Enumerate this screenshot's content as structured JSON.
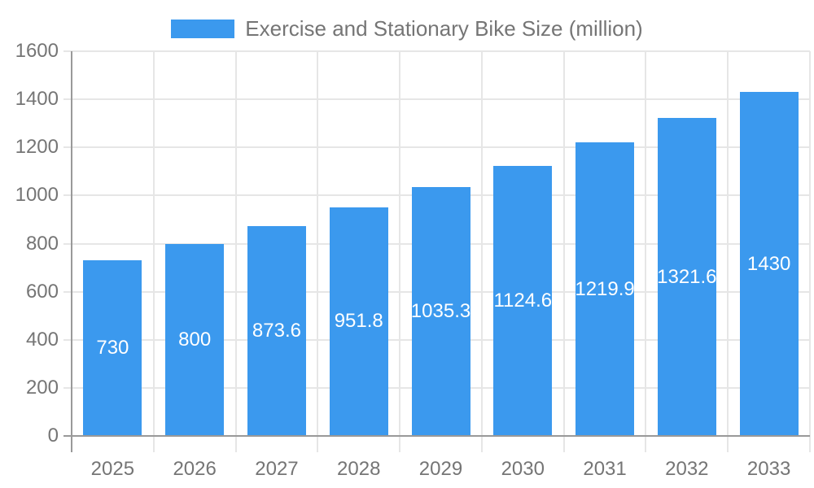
{
  "colors": {
    "bar": "#3B99EE",
    "bar_label": "#ffffff",
    "axis": "#999999",
    "grid": "#e6e6e6",
    "text": "#757575",
    "background": "#ffffff"
  },
  "legend": {
    "label": "Exercise and Stationary Bike Size (million)"
  },
  "chart_data": {
    "type": "bar",
    "title": "Exercise and Stationary Bike Size (million)",
    "series_name": "Exercise and Stationary Bike Size (million)",
    "categories": [
      "2025",
      "2026",
      "2027",
      "2028",
      "2029",
      "2030",
      "2031",
      "2032",
      "2033"
    ],
    "values": [
      730,
      800,
      873.6,
      951.8,
      1035.3,
      1124.6,
      1219.9,
      1321.6,
      1430
    ],
    "value_labels": [
      "730",
      "800",
      "873.6",
      "951.8",
      "1035.3",
      "1124.6",
      "1219.9",
      "1321.6",
      "1430"
    ],
    "xlabel": "",
    "ylabel": "",
    "ylim": [
      0,
      1600
    ],
    "yticks": [
      0,
      200,
      400,
      600,
      800,
      1000,
      1200,
      1400,
      1600
    ],
    "grid": true,
    "legend_position": "top",
    "bar_label_position": "center"
  }
}
